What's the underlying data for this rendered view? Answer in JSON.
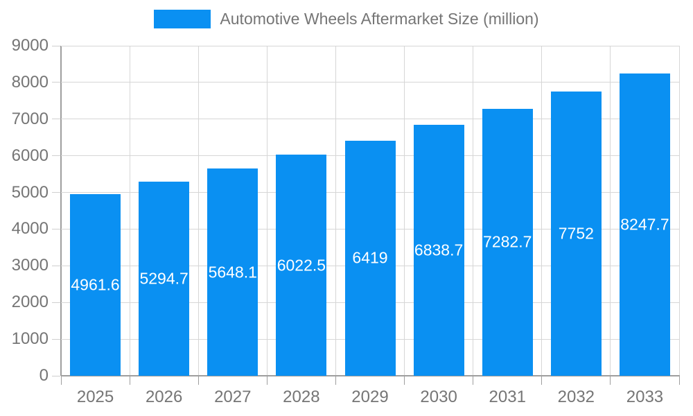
{
  "chart_data": {
    "type": "bar",
    "title": "Automotive Wheels Aftermarket Size (million)",
    "categories": [
      "2025",
      "2026",
      "2027",
      "2028",
      "2029",
      "2030",
      "2031",
      "2032",
      "2033"
    ],
    "series": [
      {
        "name": "Automotive Wheels Aftermarket Size (million)",
        "values": [
          4961.6,
          5294.7,
          5648.1,
          6022.5,
          6419,
          6838.7,
          7282.7,
          7752,
          8247.7
        ],
        "value_labels": [
          "4961.6",
          "5294.7",
          "5648.1",
          "6022.5",
          "6419",
          "6838.7",
          "7282.7",
          "7752",
          "8247.7"
        ]
      }
    ],
    "xlabel": "",
    "ylabel": "",
    "ylim": [
      0,
      9000
    ],
    "yticks": [
      0,
      1000,
      2000,
      3000,
      4000,
      5000,
      6000,
      7000,
      8000,
      9000
    ],
    "grid": true,
    "legend_position": "top",
    "colors": {
      "bar": "#0a90f2",
      "axis_text": "#757575",
      "grid_line": "#d6d6d6",
      "axis_line": "#9e9e9e",
      "value_label_text": "#ffffff",
      "background": "#ffffff"
    }
  }
}
